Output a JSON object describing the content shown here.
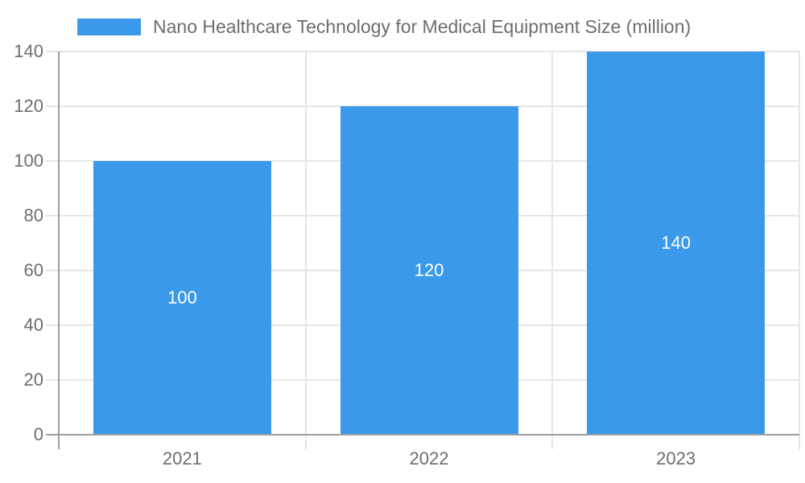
{
  "chart_data": {
    "type": "bar",
    "title": "Nano Healthcare Technology for Medical Equipment Size (million)",
    "legend": [
      "Nano Healthcare Technology for Medical Equipment Size (million)"
    ],
    "legend_position": "top",
    "categories": [
      "2021",
      "2022",
      "2023"
    ],
    "values": [
      100,
      120,
      140
    ],
    "xlabel": "",
    "ylabel": "",
    "ylim": [
      0,
      140
    ],
    "ytick_interval": 20,
    "yticks": [
      0,
      20,
      40,
      60,
      80,
      100,
      120,
      140
    ],
    "grid": true,
    "value_labels_shown": true,
    "colors": {
      "bar": "#3b99ec",
      "grid": "#e6e6e6",
      "axis": "#9e9e9e",
      "text": "#6d6d6d",
      "value_label": "#ffffff",
      "background": "#ffffff"
    }
  }
}
